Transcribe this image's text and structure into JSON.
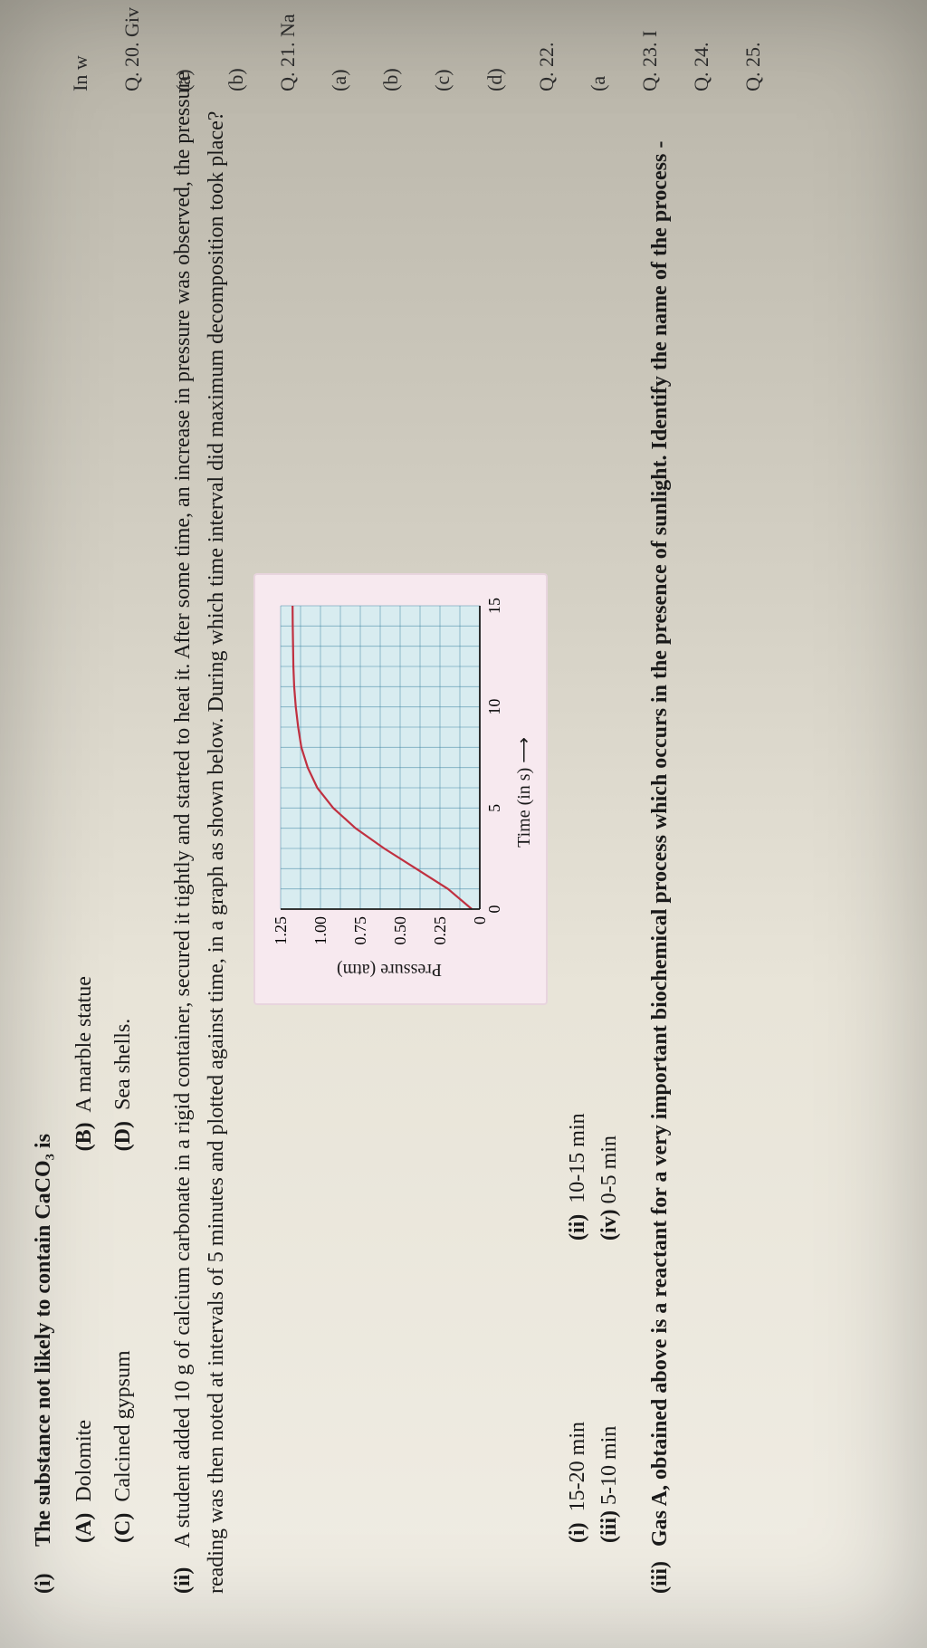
{
  "q1": {
    "label": "(i)",
    "text": "The substance not likely to contain CaCO₃ is",
    "opts": {
      "A": "Dolomite",
      "B": "A marble statue",
      "C": "Calcined gypsum",
      "D": "Sea shells."
    }
  },
  "q2": {
    "label": "(ii)",
    "text": "A student added 10 g of calcium carbonate in a rigid container, secured it tightly and started to heat it. After some time, an increase in pressure was observed, the pressure reading was then noted at intervals of 5 minutes and plotted against time, in a graph as shown below. During which time interval did maximum decomposition took place?"
  },
  "chart": {
    "type": "line",
    "y_title": "Pressure (atm)",
    "x_title": "Time (in s) ⟶",
    "xlim": [
      0,
      15
    ],
    "ylim": [
      0,
      1.25
    ],
    "x_ticks": [
      0,
      5,
      10,
      15
    ],
    "y_ticks": [
      0,
      0.25,
      0.5,
      0.75,
      1.0,
      1.25
    ],
    "y_tick_labels": [
      "0",
      "0.25",
      "0.50",
      "0.75",
      "1.00",
      "1.25"
    ],
    "curve_points": [
      [
        0,
        0.05
      ],
      [
        1,
        0.2
      ],
      [
        2,
        0.4
      ],
      [
        3,
        0.6
      ],
      [
        4,
        0.78
      ],
      [
        5,
        0.92
      ],
      [
        6,
        1.02
      ],
      [
        7,
        1.08
      ],
      [
        8,
        1.12
      ],
      [
        9,
        1.14
      ],
      [
        10,
        1.155
      ],
      [
        11,
        1.165
      ],
      [
        12,
        1.17
      ],
      [
        13,
        1.172
      ],
      [
        14,
        1.174
      ],
      [
        15,
        1.175
      ]
    ],
    "grid_minor_step_x": 1,
    "grid_minor_step_y": 0.125,
    "plot_bg": "#d8ecf0",
    "grid_color": "#3a80a0",
    "curve_color": "#c03040",
    "curve_width": 2.2,
    "axis_font_size": 18
  },
  "q2_opts": {
    "i": "15-20 min",
    "ii": "10-15 min",
    "iii": "5-10 min",
    "iv": "0-5 min"
  },
  "q3": {
    "label": "(iii)",
    "text": "Gas A, obtained above is a reactant for a very important biochemical process which occurs in the presence of sunlight. Identify the name of the process -"
  },
  "margin": {
    "l1": "In w",
    "l2": "Q. 20.  Giv",
    "l3": "(a)",
    "l4": "(b)",
    "l5": "Q. 21.  Na",
    "l6": "(a)",
    "l7": "(b)",
    "l8": "(c)",
    "l9": "(d)",
    "l10": "Q. 22.",
    "l11": "(a",
    "l12": "Q. 23.  I",
    "l13": "Q. 24.",
    "l14": "Q. 25."
  }
}
